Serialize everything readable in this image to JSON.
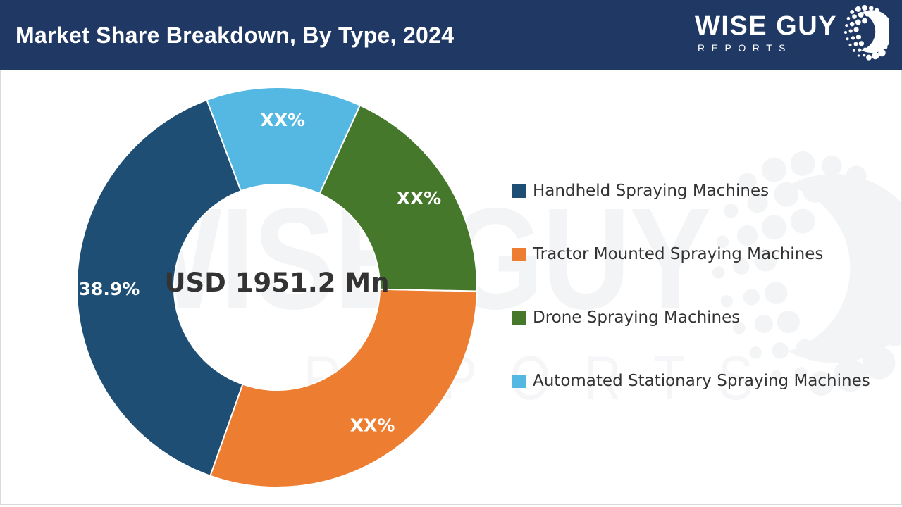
{
  "header": {
    "title": "Market Share Breakdown, By Type, 2024",
    "bg_color": "#1F3864",
    "logo": {
      "line1": "WISE GUY",
      "line2": "REPORTS"
    }
  },
  "watermark": {
    "line1": "WISE GUY",
    "line2": "REPORTS"
  },
  "chart_data": {
    "type": "pie",
    "donut": true,
    "title": "Market Share Breakdown, By Type, 2024",
    "center_label": "USD 1951.2 Mn",
    "start_angle_deg": 339.5,
    "direction": "ccw",
    "inner_radius_ratio": 0.514,
    "legend_position": "right",
    "grid": false,
    "segments": [
      {
        "name": "Handheld Spraying Machines",
        "value_pct": 38.9,
        "label": "38.9%",
        "color": "#1F4E74"
      },
      {
        "name": "Tractor Mounted Spraying Machines",
        "value_pct": 30.1,
        "label": "XX%",
        "color": "#ED7D31"
      },
      {
        "name": "Drone Spraying Machines",
        "value_pct": 18.5,
        "label": "XX%",
        "color": "#46782B"
      },
      {
        "name": "Automated Stationary Spraying Machines",
        "value_pct": 12.5,
        "label": "XX%",
        "color": "#54B8E3"
      }
    ]
  }
}
